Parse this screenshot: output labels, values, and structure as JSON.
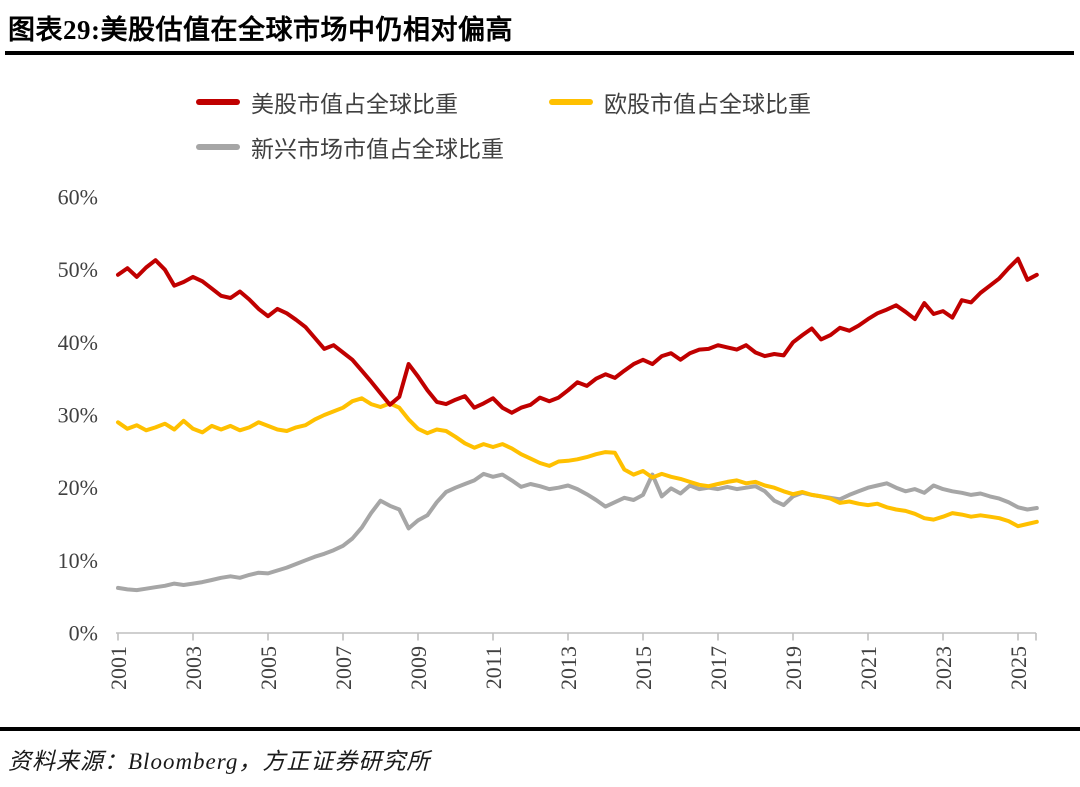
{
  "figure": {
    "title": "图表29:美股估值在全球市场中仍相对偏高",
    "source": "资料来源：Bloomberg，方正证券研究所"
  },
  "legend": [
    {
      "label": "美股市值占全球比重",
      "color": "#C00000"
    },
    {
      "label": "欧股市值占全球比重",
      "color": "#FFC000"
    },
    {
      "label": "新兴市场市值占全球比重",
      "color": "#A6A6A6"
    }
  ],
  "chart_data": {
    "type": "line",
    "title": "",
    "xlabel": "",
    "ylabel": "",
    "x_start": 2001.0,
    "x_step": 0.25,
    "xlim": [
      2001.0,
      2025.6
    ],
    "ylim": [
      0,
      60
    ],
    "grid": false,
    "legend_position": "top",
    "x_tick_labels": [
      "2001",
      "2003",
      "2005",
      "2007",
      "2009",
      "2011",
      "2013",
      "2015",
      "2017",
      "2019",
      "2021",
      "2023",
      "2025"
    ],
    "y_tick_labels": [
      "0%",
      "10%",
      "20%",
      "30%",
      "40%",
      "50%",
      "60%"
    ],
    "axis_color": "#BFBFBF",
    "tick_label_color": "#404040",
    "series": [
      {
        "name": "美股市值占全球比重",
        "color": "#C00000",
        "values": [
          49.3,
          50.2,
          49.0,
          50.3,
          51.3,
          50.0,
          47.8,
          48.3,
          49.0,
          48.4,
          47.4,
          46.4,
          46.1,
          47.0,
          45.9,
          44.6,
          43.6,
          44.6,
          44.0,
          43.1,
          42.1,
          40.6,
          39.1,
          39.6,
          38.6,
          37.6,
          36.1,
          34.6,
          33.0,
          31.4,
          32.5,
          37.0,
          35.3,
          33.4,
          31.8,
          31.5,
          32.1,
          32.6,
          31.0,
          31.6,
          32.3,
          31.0,
          30.3,
          31.0,
          31.4,
          32.4,
          31.9,
          32.4,
          33.4,
          34.5,
          34.0,
          35.0,
          35.6,
          35.1,
          36.1,
          37.0,
          37.6,
          37.0,
          38.1,
          38.5,
          37.6,
          38.5,
          39.0,
          39.1,
          39.6,
          39.3,
          39.0,
          39.6,
          38.6,
          38.1,
          38.4,
          38.2,
          40.0,
          41.0,
          41.9,
          40.4,
          41.0,
          42.0,
          41.6,
          42.3,
          43.2,
          44.0,
          44.5,
          45.1,
          44.2,
          43.2,
          45.4,
          43.9,
          44.3,
          43.4,
          45.8,
          45.5,
          46.8,
          47.8,
          48.8,
          50.2,
          51.5,
          48.6,
          49.3
        ]
      },
      {
        "name": "欧股市值占全球比重",
        "color": "#FFC000",
        "values": [
          29.0,
          28.1,
          28.6,
          27.9,
          28.3,
          28.8,
          28.0,
          29.2,
          28.1,
          27.6,
          28.5,
          28.0,
          28.5,
          27.9,
          28.3,
          29.0,
          28.5,
          28.0,
          27.8,
          28.3,
          28.6,
          29.4,
          30.0,
          30.5,
          31.0,
          31.9,
          32.3,
          31.5,
          31.1,
          31.6,
          31.0,
          29.4,
          28.1,
          27.5,
          28.0,
          27.8,
          27.0,
          26.1,
          25.5,
          26.0,
          25.6,
          26.0,
          25.4,
          24.6,
          24.0,
          23.4,
          23.0,
          23.6,
          23.7,
          23.9,
          24.2,
          24.6,
          24.9,
          24.8,
          22.5,
          21.8,
          22.3,
          21.4,
          21.9,
          21.5,
          21.2,
          20.8,
          20.4,
          20.2,
          20.5,
          20.8,
          21.0,
          20.6,
          20.8,
          20.3,
          20.0,
          19.5,
          19.1,
          19.4,
          19.0,
          18.8,
          18.5,
          17.9,
          18.1,
          17.8,
          17.6,
          17.8,
          17.3,
          17.0,
          16.8,
          16.4,
          15.8,
          15.6,
          16.0,
          16.5,
          16.3,
          16.0,
          16.2,
          16.0,
          15.8,
          15.4,
          14.7,
          15.0,
          15.3
        ]
      },
      {
        "name": "新兴市场市值占全球比重",
        "color": "#A6A6A6",
        "values": [
          6.2,
          6.0,
          5.9,
          6.1,
          6.3,
          6.5,
          6.8,
          6.6,
          6.8,
          7.0,
          7.3,
          7.6,
          7.8,
          7.6,
          8.0,
          8.3,
          8.2,
          8.6,
          9.0,
          9.5,
          10.0,
          10.5,
          10.9,
          11.4,
          12.0,
          13.0,
          14.5,
          16.5,
          18.2,
          17.5,
          17.0,
          14.4,
          15.5,
          16.2,
          18.0,
          19.4,
          20.0,
          20.5,
          21.0,
          21.9,
          21.5,
          21.8,
          21.0,
          20.1,
          20.5,
          20.2,
          19.8,
          20.0,
          20.3,
          19.8,
          19.1,
          18.3,
          17.4,
          18.0,
          18.6,
          18.3,
          19.0,
          21.8,
          18.8,
          19.9,
          19.2,
          20.3,
          19.8,
          20.0,
          19.8,
          20.1,
          19.8,
          20.0,
          20.2,
          19.5,
          18.2,
          17.6,
          18.8,
          19.3,
          19.0,
          18.8,
          18.6,
          18.4,
          19.0,
          19.5,
          20.0,
          20.3,
          20.6,
          20.0,
          19.5,
          19.8,
          19.3,
          20.3,
          19.8,
          19.5,
          19.3,
          19.0,
          19.2,
          18.8,
          18.5,
          18.0,
          17.3,
          17.0,
          17.2
        ]
      }
    ]
  }
}
